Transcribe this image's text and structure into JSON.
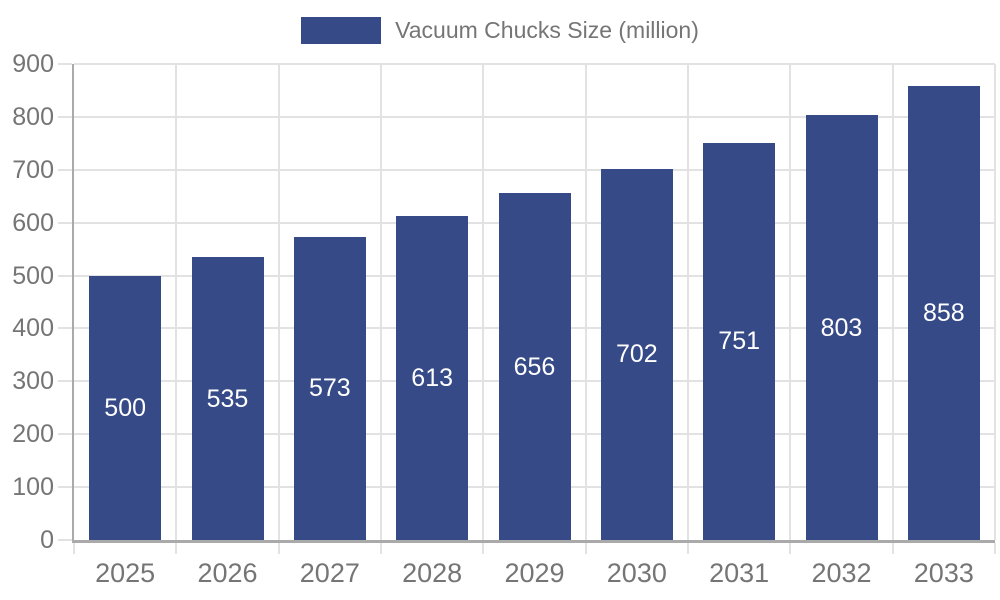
{
  "chart_data": {
    "type": "bar",
    "title": "Vacuum Chucks Size (million)",
    "categories": [
      "2025",
      "2026",
      "2027",
      "2028",
      "2029",
      "2030",
      "2031",
      "2032",
      "2033"
    ],
    "values": [
      500,
      535,
      573,
      613,
      656,
      702,
      751,
      803,
      858
    ],
    "xlabel": "",
    "ylabel": "",
    "ylim": [
      0,
      900
    ],
    "ytick_step": 100,
    "grid": true,
    "legend_position": "top",
    "value_labels": "inside-center",
    "colors": {
      "bar": "#364a87",
      "grid": "#e2e2e2",
      "axis": "#aaaaaa",
      "tick_label": "#757575",
      "legend_text": "#757575",
      "value_label": "#ffffff",
      "background": "#ffffff"
    }
  }
}
